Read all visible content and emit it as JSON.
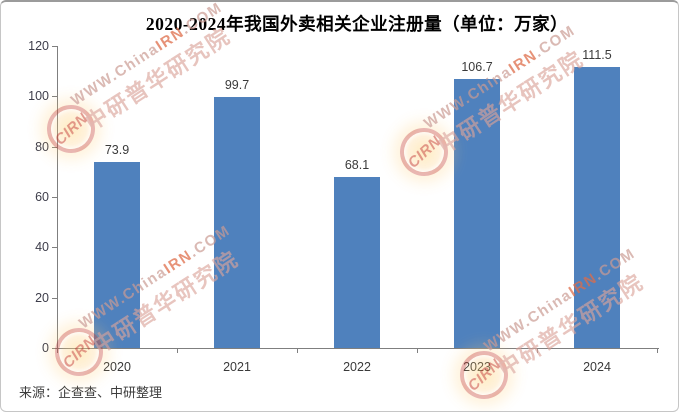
{
  "chart_data": {
    "type": "bar",
    "title": "2020-2024年我国外卖相关企业注册量（单位：万家）",
    "categories": [
      "2020",
      "2021",
      "2022",
      "2023",
      "2024"
    ],
    "values": [
      73.9,
      99.7,
      68.1,
      106.7,
      111.5
    ],
    "xlabel": "",
    "ylabel": "",
    "ylim": [
      0,
      120
    ],
    "y_ticks": [
      0,
      20,
      40,
      60,
      80,
      100,
      120
    ],
    "grid": false,
    "legend_position": "none",
    "bar_color": "#4F81BD",
    "source": "来源：企查查、中研整理"
  },
  "watermark": {
    "logo_text": "CIRN",
    "line1_prefix": "WWW.China",
    "line1_highlight": "IRN",
    "line1_suffix": ".COM",
    "line2": "中研普华研究院"
  }
}
